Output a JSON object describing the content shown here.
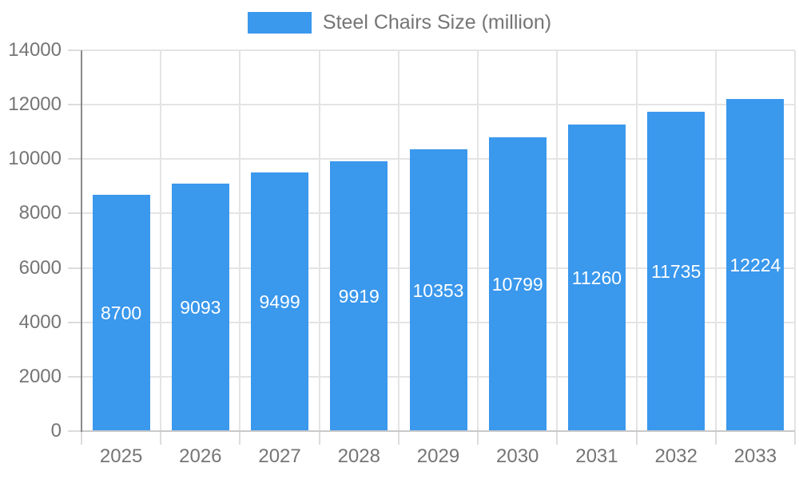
{
  "chart_data": {
    "type": "bar",
    "title": "",
    "legend_label": "Steel Chairs Size (million)",
    "legend_position": "top-center",
    "categories": [
      "2025",
      "2026",
      "2027",
      "2028",
      "2029",
      "2030",
      "2031",
      "2032",
      "2033"
    ],
    "series": [
      {
        "name": "Steel Chairs Size (million)",
        "values": [
          8700,
          9093,
          9499,
          9919,
          10353,
          10799,
          11260,
          11735,
          12224
        ]
      }
    ],
    "bar_value_labels": [
      "8700",
      "9093",
      "9499",
      "9919",
      "10353",
      "10799",
      "11260",
      "11735",
      "12224"
    ],
    "xlabel": "",
    "ylabel": "",
    "ylim": [
      0,
      14000
    ],
    "yticks": [
      0,
      2000,
      4000,
      6000,
      8000,
      10000,
      12000,
      14000
    ],
    "grid": true,
    "colors": {
      "bar": "#3A98ED",
      "axis_text": "#757575",
      "bar_label_text": "#ffffff",
      "gridline": "#e4e4e4",
      "y_axis_line": "#8a8a8a",
      "x_axis_line": "#c9c9c9"
    }
  }
}
